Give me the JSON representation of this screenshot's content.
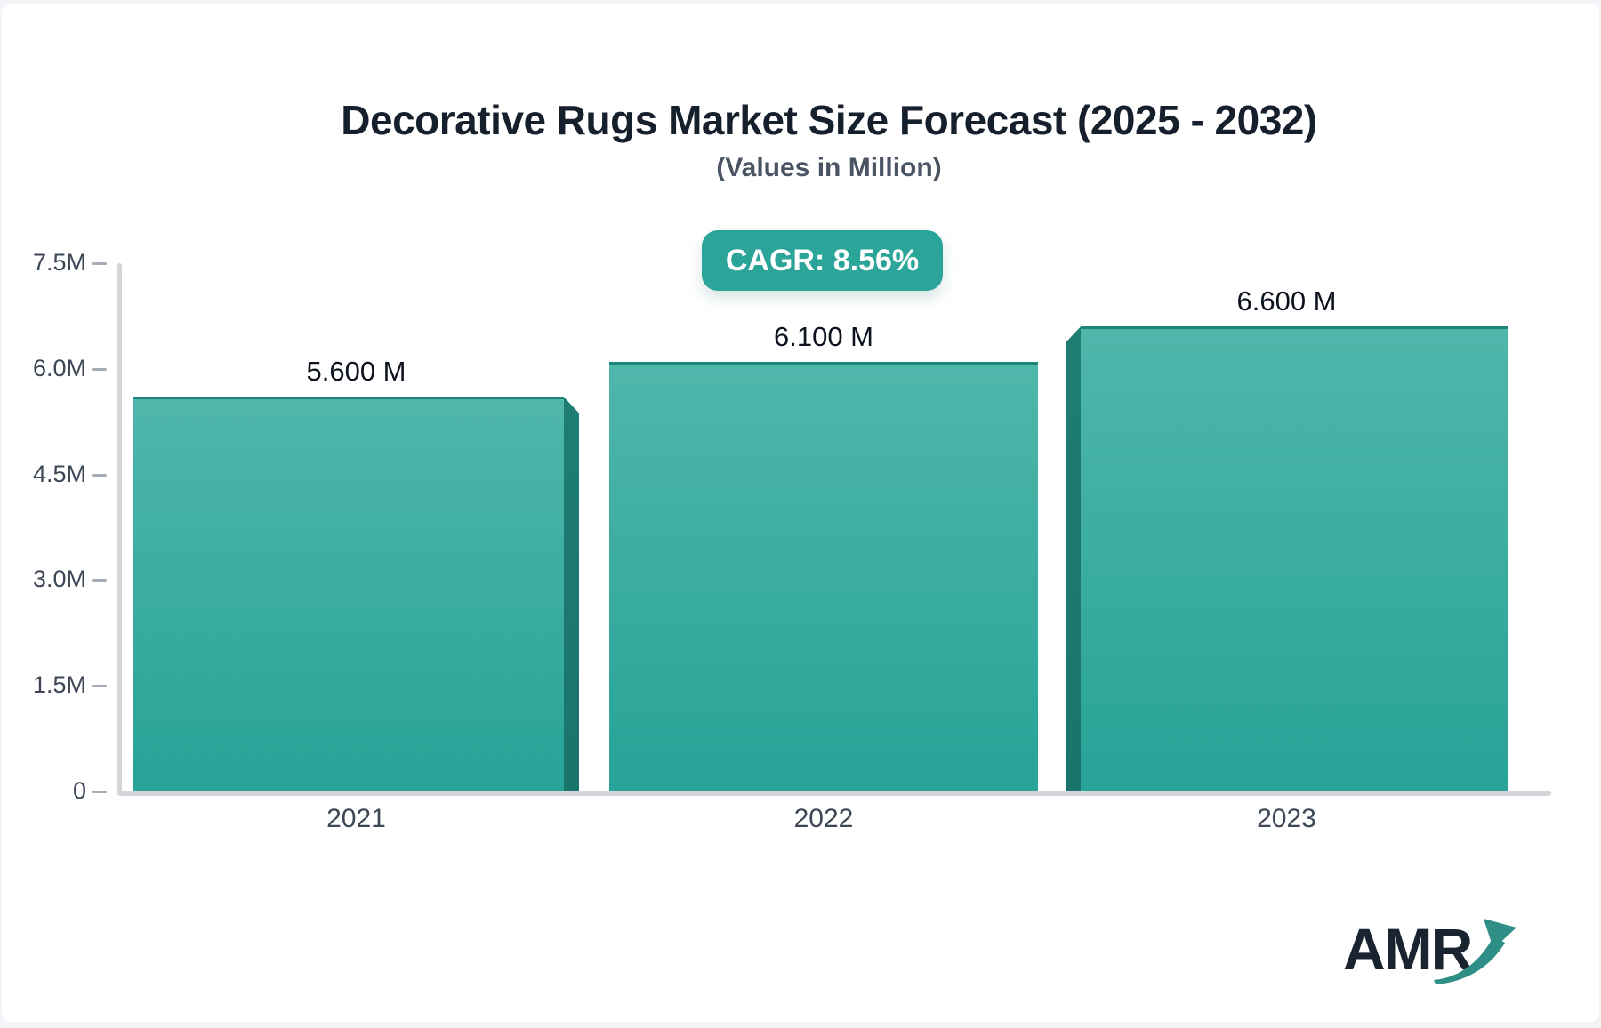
{
  "page": {
    "background": "#f2f4f7",
    "card_background": "#ffffff"
  },
  "chart_data": {
    "type": "bar",
    "title": "Decorative Rugs Market Size Forecast (2025 - 2032)",
    "subtitle": "(Values in Million)",
    "badge_label": "CAGR: 8.56%",
    "categories": [
      "2021",
      "2022",
      "2023"
    ],
    "values": [
      5.6,
      6.1,
      6.6
    ],
    "value_labels": [
      "5.600 M",
      "6.100 M",
      "6.600 M"
    ],
    "ylim": [
      0,
      7.5
    ],
    "yticks": [
      {
        "label": "7.5M",
        "value": 7.5
      },
      {
        "label": "6.0M",
        "value": 6.0
      },
      {
        "label": "4.5M",
        "value": 4.5
      },
      {
        "label": "3.0M",
        "value": 3.0
      },
      {
        "label": "1.5M",
        "value": 1.5
      },
      {
        "label": "0",
        "value": 0
      }
    ],
    "grid": false,
    "legend": false,
    "bar_style": "pseudo-3d"
  },
  "colors": {
    "accent": "#2ba499",
    "bar_top": "#4fb6aa",
    "bar_bottom": "#27a397",
    "bar_edge": "#1e8579",
    "bar_side": "#1f7d73",
    "axis_line": "#d2d5da",
    "text_dark": "#16202c",
    "text_muted": "#3e4756",
    "logo_text_color": "#1a2430",
    "logo_arrow_color": "#2f8e85"
  },
  "logo": {
    "text": "AMR"
  }
}
